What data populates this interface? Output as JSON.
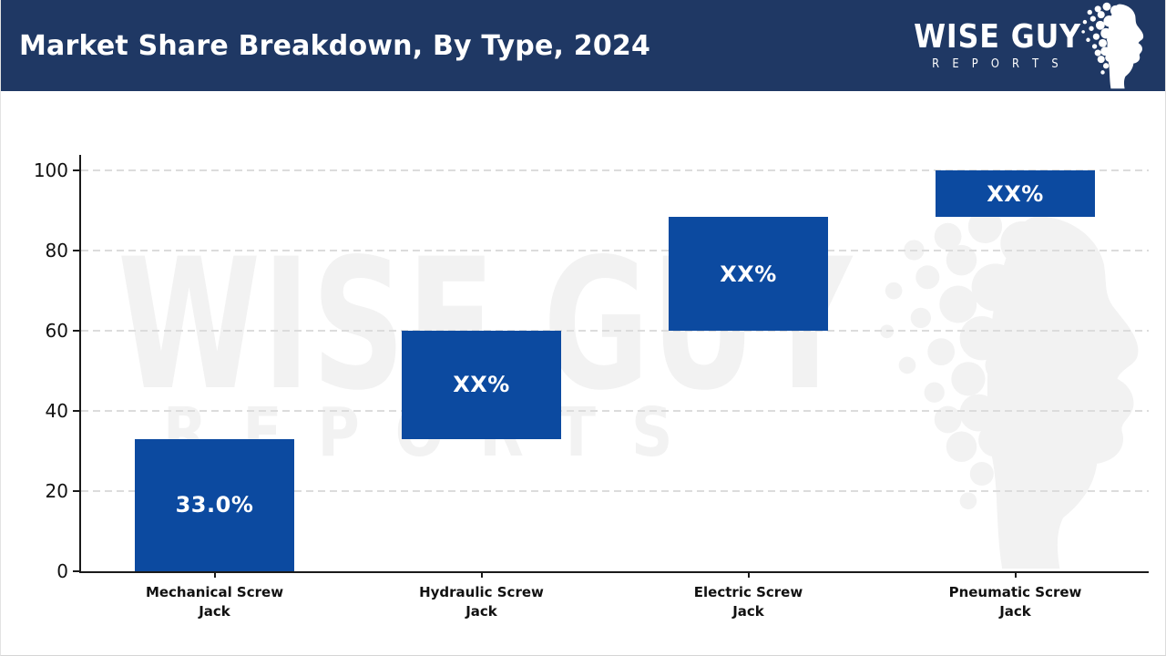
{
  "header": {
    "title": "Market Share Breakdown, By Type, 2024",
    "logo": {
      "brand": "WISE GUY",
      "sub": "R E P O R T S"
    }
  },
  "watermark": {
    "line1": "WISE GUY",
    "line2": "REPORTS"
  },
  "colors": {
    "header_bg": "#1f3864",
    "bar_fill": "#0c4aa0",
    "bar_label_text": "#ffffff",
    "gridline": "#dcdcdc",
    "axis": "#1a1a1a",
    "tick_text": "#111111",
    "watermark": "#f2f2f2"
  },
  "chart_data": {
    "type": "bar",
    "subtype": "waterfall",
    "title": "Market Share Breakdown, By Type, 2024",
    "categories": [
      "Mechanical Screw Jack",
      "Hydraulic Screw Jack",
      "Electric Screw Jack",
      "Pneumatic Screw Jack"
    ],
    "category_lines": [
      [
        "Mechanical Screw",
        "Jack"
      ],
      [
        "Hydraulic Screw",
        "Jack"
      ],
      [
        "Electric Screw",
        "Jack"
      ],
      [
        "Pneumatic Screw",
        "Jack"
      ]
    ],
    "bars": [
      {
        "category": "Mechanical Screw Jack",
        "start": 0,
        "end": 33.0,
        "label": "33.0%"
      },
      {
        "category": "Hydraulic Screw Jack",
        "start": 33.0,
        "end": 60.0,
        "label": "XX%"
      },
      {
        "category": "Electric Screw Jack",
        "start": 60.0,
        "end": 88.4,
        "label": "XX%"
      },
      {
        "category": "Pneumatic Screw Jack",
        "start": 88.4,
        "end": 100.0,
        "label": "XX%"
      }
    ],
    "yticks": [
      0,
      20,
      40,
      60,
      80,
      100
    ],
    "ylim": [
      0,
      104
    ],
    "xlabel": "",
    "ylabel": "",
    "grid": "horizontal-dashed",
    "legend": "none"
  }
}
